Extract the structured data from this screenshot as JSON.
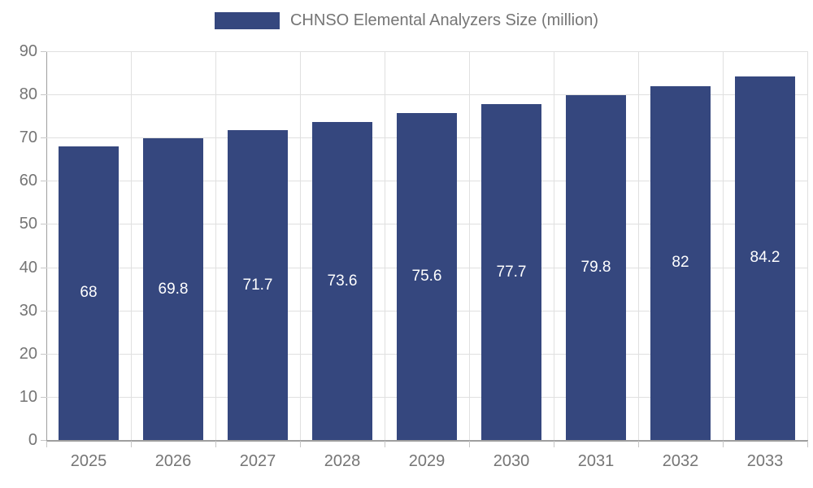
{
  "chart_data": {
    "type": "bar",
    "title": "CHNSO Elemental Analyzers Size (million)",
    "categories": [
      "2025",
      "2026",
      "2027",
      "2028",
      "2029",
      "2030",
      "2031",
      "2032",
      "2033"
    ],
    "series": [
      {
        "name": "CHNSO Elemental Analyzers Size (million)",
        "values": [
          68,
          69.8,
          71.7,
          73.6,
          75.6,
          77.7,
          79.8,
          82,
          84.2
        ]
      }
    ],
    "xlabel": "",
    "ylabel": "",
    "ylim": [
      0,
      90
    ],
    "ytick_step": 10,
    "grid": "on",
    "legend_position": "top-center",
    "value_labels": "inside-middle",
    "colors": {
      "bar": "#35477e",
      "value_label": "#ffffff",
      "grid": "#e0e0e0",
      "axis": "#9e9e9e",
      "tick": "#c6c6c6",
      "text": "#757575"
    }
  }
}
